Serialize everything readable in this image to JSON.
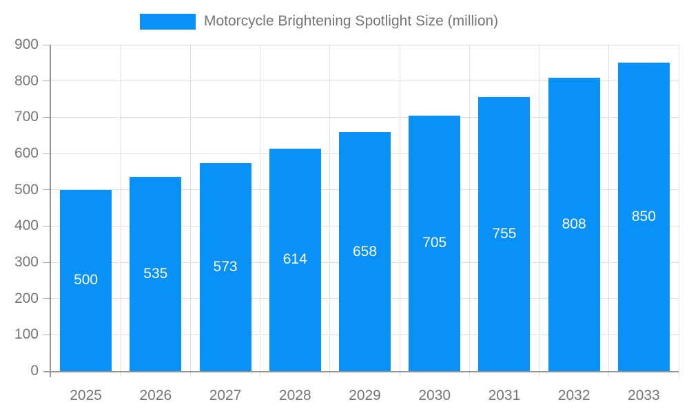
{
  "legend": {
    "label": "Motorcycle Brightening Spotlight Size (million)"
  },
  "chart_data": {
    "type": "bar",
    "title": "Motorcycle Brightening Spotlight Size (million)",
    "categories": [
      "2025",
      "2026",
      "2027",
      "2028",
      "2029",
      "2030",
      "2031",
      "2032",
      "2033"
    ],
    "values": [
      500,
      535,
      573,
      614,
      658,
      705,
      755,
      808,
      850
    ],
    "xlabel": "",
    "ylabel": "",
    "ylim": [
      0,
      900
    ],
    "ytick_interval": 100,
    "yticks": [
      0,
      100,
      200,
      300,
      400,
      500,
      600,
      700,
      800,
      900
    ],
    "grid": true,
    "legend_position": "top",
    "bar_color": "#0A91F7",
    "value_label_color": "#FFFFFF"
  },
  "colors": {
    "background": "#FFFFFF",
    "bar": "#0A91F7",
    "axis": "#949494",
    "gridline": "#DDDDDD",
    "tick_text": "#757575",
    "value_label": "#FFFFFF"
  }
}
